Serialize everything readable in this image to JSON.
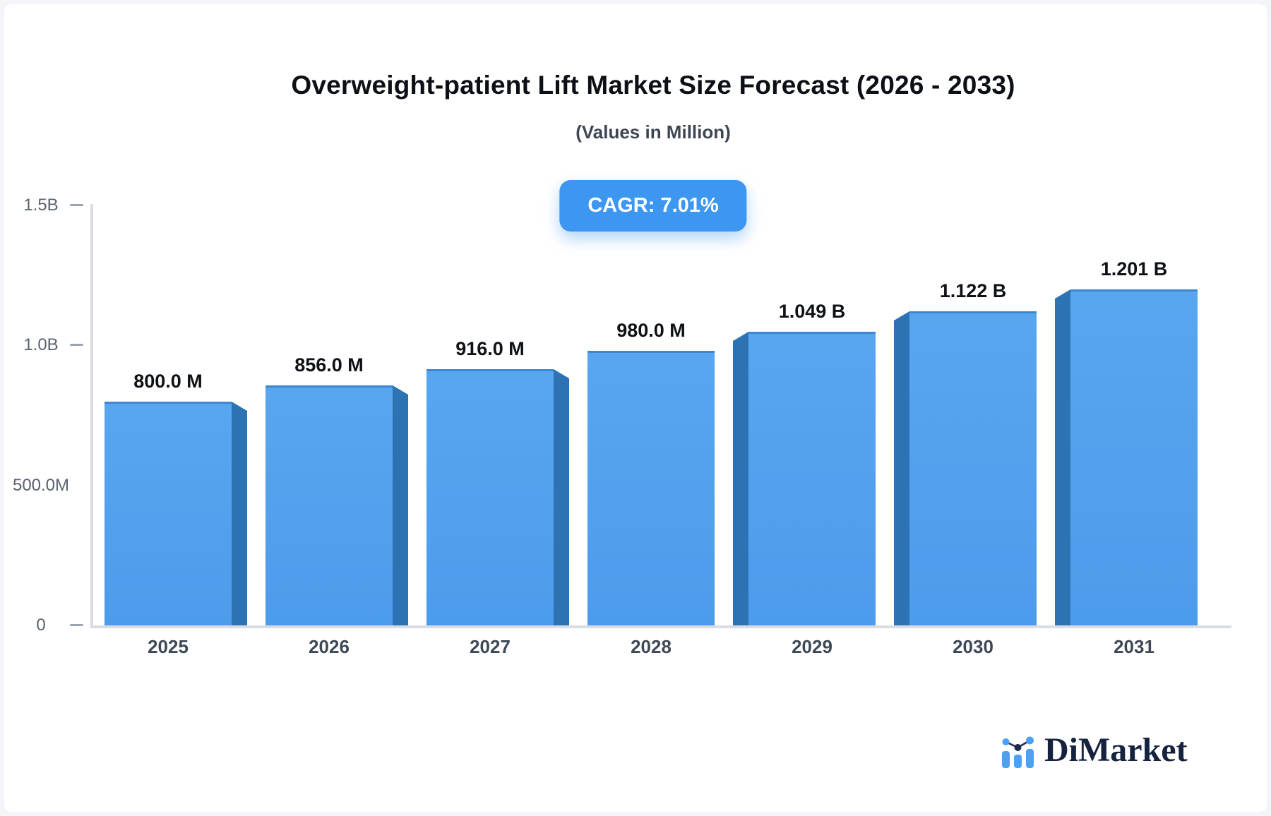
{
  "header": {
    "title": "Overweight-patient Lift Market Size Forecast (2026 - 2033)",
    "subtitle": "(Values in Million)",
    "cagr_badge": "CAGR: 7.01%",
    "badge_color": "#3d96ef"
  },
  "chart_data": {
    "type": "bar",
    "title": "Overweight-patient Lift Market Size Forecast (2026 - 2033)",
    "subtitle": "(Values in Million)",
    "cagr": "7.01%",
    "categories": [
      "2025",
      "2026",
      "2027",
      "2028",
      "2029",
      "2030",
      "2031"
    ],
    "values_millions": [
      800,
      856,
      916,
      980,
      1049,
      1122,
      1201
    ],
    "value_labels": [
      "800.0 M",
      "856.0 M",
      "916.0 M",
      "980.0 M",
      "1.049 B",
      "1.122 B",
      "1.201 B"
    ],
    "ylim_millions": [
      0,
      1500
    ],
    "yticks": [
      {
        "label": "1.5B",
        "value_millions": 1500,
        "dash": true
      },
      {
        "label": "1.0B",
        "value_millions": 1000,
        "dash": true
      },
      {
        "label": "500.0M",
        "value_millions": 500,
        "dash": false
      },
      {
        "label": "0",
        "value_millions": 0,
        "dash": true
      }
    ],
    "grid": false,
    "legend": false,
    "bar_face_color": "#54a3ee",
    "bar_face_gradient_top": "#58a6f0",
    "bar_face_gradient_bottom": "#4c9cec",
    "bar_top_edge_color": "#3f86d2",
    "bar_side_color": "#2d73b4",
    "axis_color": "#d9dde3",
    "tick_color": "#9aa3b0",
    "ytick_text_color": "#5a6270",
    "xtick_text_color": "#3e4856",
    "value_label_color": "#0e1116"
  },
  "logo": {
    "text": "DiMarket",
    "icon": "bar-line-chart-icon",
    "text_color": "#16233f",
    "icon_bar_color": "#4aa1f6",
    "icon_line_color": "#1c2b4d"
  }
}
